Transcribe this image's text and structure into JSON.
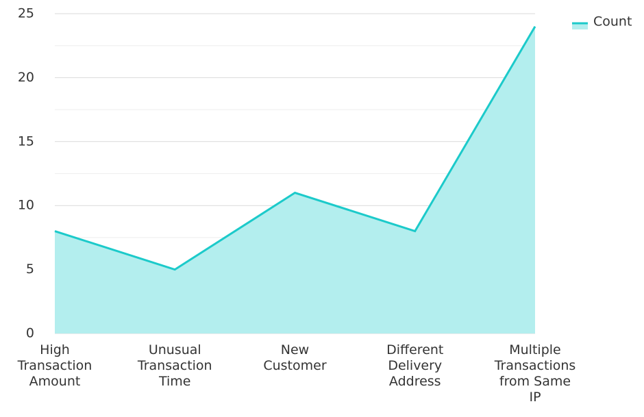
{
  "chart_data": {
    "type": "area",
    "categories": [
      "High Transaction Amount",
      "Unusual Transaction Time",
      "New Customer",
      "Different Delivery Address",
      "Multiple Transactions from Same IP"
    ],
    "series": [
      {
        "name": "Count",
        "color": "#1ccaca",
        "fill": "#b3eeee",
        "values": [
          8,
          5,
          11,
          8,
          24
        ]
      }
    ],
    "ylim": [
      0,
      25
    ],
    "yticks": [
      0,
      5,
      10,
      15,
      20,
      25
    ],
    "grid": true,
    "minor_grid": true,
    "legend": "top-right"
  }
}
